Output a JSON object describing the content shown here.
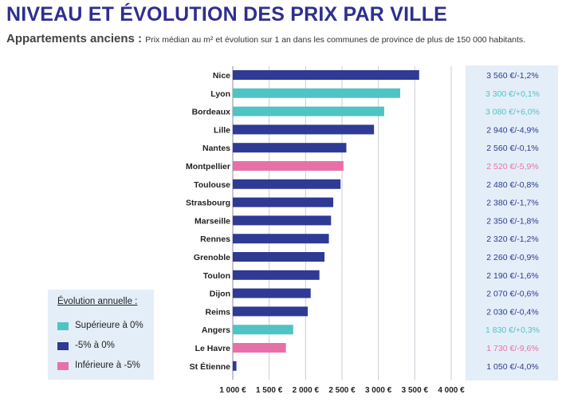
{
  "header": {
    "title": "NIVEAU ET ÉVOLUTION DES PRIX PAR VILLE",
    "subtitle_bold": "Appartements anciens :",
    "subtitle_text": "Prix médian au m² et évolution sur 1 an dans les communes de province de plus de 150 000 habitants."
  },
  "colors": {
    "above": "#4fc4c4",
    "mid": "#2e3a94",
    "below": "#e870a8"
  },
  "legend": {
    "title": "Évolution annuelle :",
    "items": [
      {
        "label": "Supérieure à 0%",
        "color": "#4fc4c4"
      },
      {
        "label": "-5% à 0%",
        "color": "#2e3a94"
      },
      {
        "label": "Inférieure à -5%",
        "color": "#e870a8"
      }
    ]
  },
  "chart_data": {
    "type": "bar",
    "orientation": "horizontal",
    "title": "NIVEAU ET ÉVOLUTION DES PRIX PAR VILLE",
    "xlim": [
      1000,
      4000
    ],
    "xticks": [
      "1 000 €",
      "1 500 €",
      "2 000 €",
      "2 500 €",
      "3 000 €",
      "3 500 €",
      "4 000 €"
    ],
    "xtick_values": [
      1000,
      1500,
      2000,
      2500,
      3000,
      3500,
      4000
    ],
    "grid": "vertical",
    "categories": [
      "Nice",
      "Lyon",
      "Bordeaux",
      "Lille",
      "Nantes",
      "Montpellier",
      "Toulouse",
      "Strasbourg",
      "Marseille",
      "Rennes",
      "Grenoble",
      "Toulon",
      "Dijon",
      "Reims",
      "Angers",
      "Le Havre",
      "St Étienne"
    ],
    "values": [
      3560,
      3300,
      3080,
      2940,
      2560,
      2520,
      2480,
      2380,
      2350,
      2320,
      2260,
      2190,
      2070,
      2030,
      1830,
      1730,
      1050
    ],
    "evolution": [
      -1.2,
      0.1,
      6.0,
      -4.9,
      -0.1,
      -5.9,
      -0.8,
      -1.7,
      -1.8,
      -1.2,
      -0.9,
      -1.6,
      -0.6,
      -0.4,
      0.3,
      -9.6,
      -4.0
    ],
    "groups": [
      "mid",
      "above",
      "above",
      "mid",
      "mid",
      "below",
      "mid",
      "mid",
      "mid",
      "mid",
      "mid",
      "mid",
      "mid",
      "mid",
      "above",
      "below",
      "mid"
    ],
    "data_labels": [
      "3 560 €/-1,2%",
      "3 300 €/+0,1%",
      "3 080 €/+6,0%",
      "2 940 €/-4,9%",
      "2 560 €/-0,1%",
      "2 520 €/-5,9%",
      "2 480 €/-0,8%",
      "2 380 €/-1,7%",
      "2 350 €/-1,8%",
      "2 320 €/-1,2%",
      "2 260 €/-0,9%",
      "2 190 €/-1,6%",
      "2 070 €/-0,6%",
      "2 030 €/-0,4%",
      "1 830 €/+0,3%",
      "1 730 €/-9,6%",
      "1 050 €/-4,0%"
    ]
  }
}
